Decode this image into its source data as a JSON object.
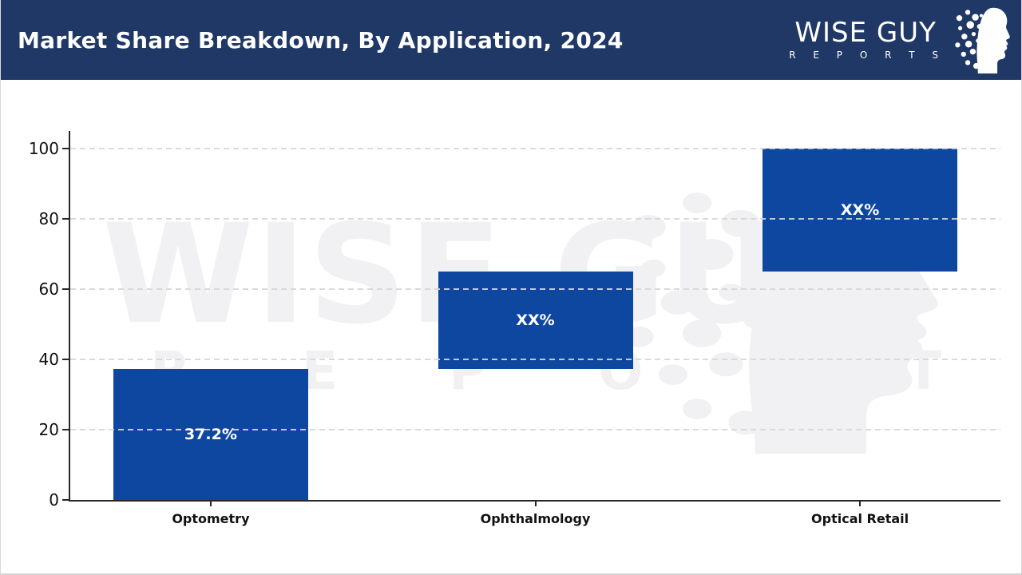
{
  "header": {
    "title": "Market Share Breakdown, By Application, 2024",
    "bg_color": "#1f3866",
    "logo": {
      "name": "WISE GUY",
      "tagline": "R E P O R T S"
    }
  },
  "watermark": {
    "name": "WISE GUY",
    "tagline": "R E P O R T S",
    "color": "#f1f1f4"
  },
  "chart_data": {
    "type": "bar",
    "variant": "waterfall",
    "title": "Market Share Breakdown, By Application, 2024",
    "categories": [
      "Optometry",
      "Ophthalmology",
      "Optical Retail"
    ],
    "segments": [
      {
        "category": "Optometry",
        "start": 0,
        "end": 37.2,
        "label": "37.2%"
      },
      {
        "category": "Ophthalmology",
        "start": 37.2,
        "end": 65,
        "label": "XX%"
      },
      {
        "category": "Optical Retail",
        "start": 65,
        "end": 100,
        "label": "XX%"
      }
    ],
    "yticks": [
      0,
      20,
      40,
      60,
      80,
      100
    ],
    "ylim": [
      0,
      105
    ],
    "xlabel": "",
    "ylabel": "",
    "grid": "horizontal-dashed",
    "legend": "none",
    "bar_color": "#0d47a0",
    "bar_label_color": "#ffffff",
    "axis_color": "#262626",
    "grid_color": "#d6d6d6"
  }
}
